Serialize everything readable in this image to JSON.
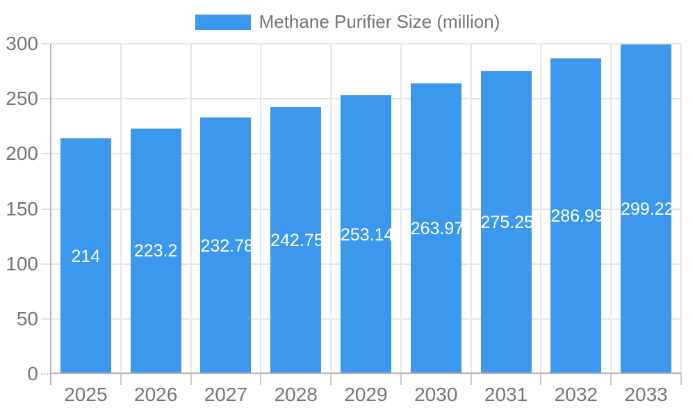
{
  "chart_data": {
    "type": "bar",
    "legend": [
      "Methane Purifier Size (million)"
    ],
    "legend_position": "top-center",
    "categories": [
      "2025",
      "2026",
      "2027",
      "2028",
      "2029",
      "2030",
      "2031",
      "2032",
      "2033"
    ],
    "series": [
      {
        "name": "Methane Purifier Size (million)",
        "values": [
          214,
          223.2,
          232.78,
          242.75,
          253.14,
          263.97,
          275.25,
          286.99,
          299.22
        ]
      }
    ],
    "value_labels": [
      "214",
      "223.2",
      "232.78",
      "242.75",
      "253.14",
      "263.97",
      "275.25",
      "286.99",
      "299.22"
    ],
    "xlabel": "",
    "ylabel": "",
    "ylim": [
      0,
      300
    ],
    "yticks": [
      "0",
      "50",
      "100",
      "150",
      "200",
      "250",
      "300"
    ],
    "grid": true,
    "colors": {
      "bar": "#3b98ec",
      "value_label": "#ffffff",
      "axis_text": "#757575",
      "axis_line": "#b3b3b3",
      "gridline": "#e6e6e6",
      "background": "#ffffff"
    }
  }
}
